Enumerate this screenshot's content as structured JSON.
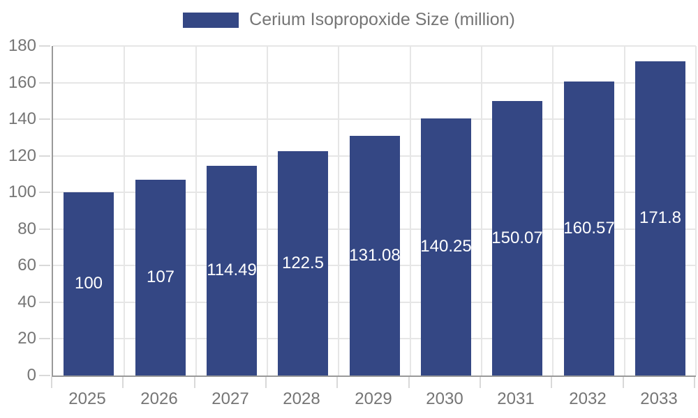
{
  "chart_data": {
    "type": "bar",
    "title": "",
    "legend": "Cerium Isopropoxide Size (million)",
    "categories": [
      "2025",
      "2026",
      "2027",
      "2028",
      "2029",
      "2030",
      "2031",
      "2032",
      "2033"
    ],
    "values": [
      100,
      107,
      114.49,
      122.5,
      131.08,
      140.25,
      150.07,
      160.57,
      171.8
    ],
    "value_labels": [
      "100",
      "107",
      "114.49",
      "122.5",
      "131.08",
      "140.25",
      "150.07",
      "160.57",
      "171.8"
    ],
    "xlabel": "",
    "ylabel": "",
    "ylim": [
      0,
      180
    ],
    "ytick_step": 20,
    "ytick_labels": [
      "0",
      "20",
      "40",
      "60",
      "80",
      "100",
      "120",
      "140",
      "160",
      "180"
    ],
    "grid": "on",
    "legend_position": "top-center",
    "colors": {
      "bar": "#344784",
      "grid": "#e6e6e6",
      "axis": "#999999",
      "tick": "#d9d9d9",
      "axis_text": "#757575",
      "legend_text": "#757575",
      "value_text": "#ffffff"
    }
  }
}
